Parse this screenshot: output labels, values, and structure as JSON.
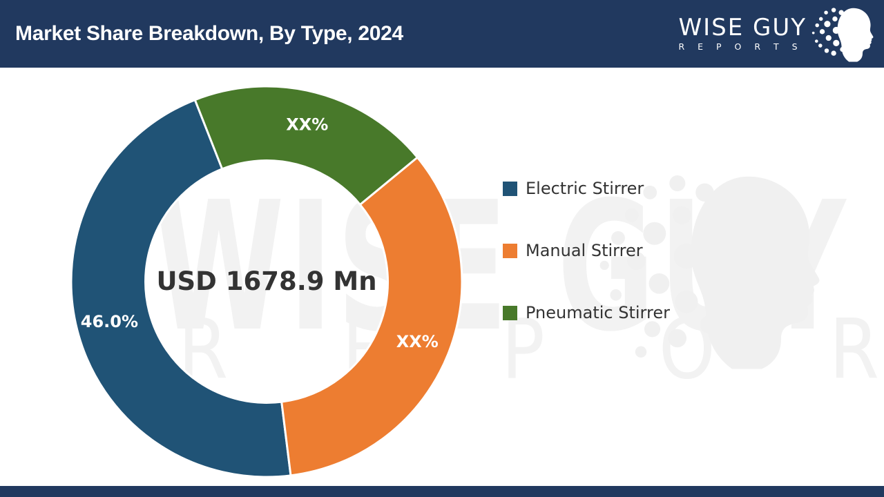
{
  "header": {
    "title": "Market Share Breakdown, By Type, 2024",
    "logo_line1": "WISE GUY",
    "logo_line2": "R E P O R T S"
  },
  "chart_data": {
    "type": "pie",
    "subtype": "donut",
    "title": "Market Share Breakdown, By Type, 2024",
    "center_label": "USD 1678.9 Mn",
    "start_angle_deg": 111.5,
    "direction": "counterclockwise",
    "inner_radius_ratio": 0.62,
    "legend_position": "right",
    "categories": [
      "Electric Stirrer",
      "Manual Stirrer",
      "Pneumatic Stirrer"
    ],
    "values_pct": [
      46.0,
      34.0,
      20.0
    ],
    "display_labels": [
      "46.0%",
      "XX%",
      "XX%"
    ],
    "colors": [
      "#205376",
      "#ed7d31",
      "#48792a"
    ]
  },
  "watermark": {
    "line1": "WISE GUY",
    "line2": "R E P O R T S"
  },
  "colors": {
    "header_bg": "#21395f",
    "footer_bg": "#21395f",
    "title_text": "#ffffff",
    "center_text": "#333333",
    "legend_text": "#333333",
    "watermark": "#f2f2f2"
  }
}
